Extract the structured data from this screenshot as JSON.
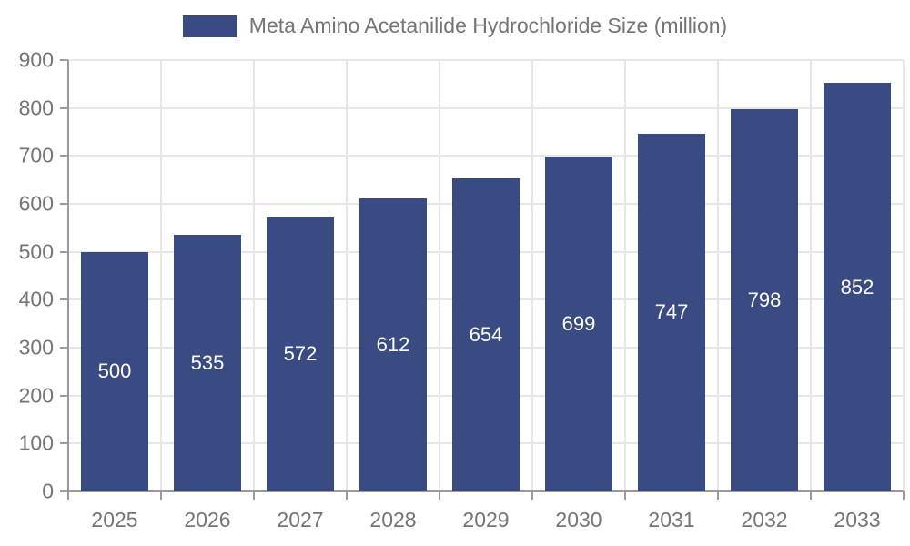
{
  "chart_data": {
    "type": "bar",
    "title": "Meta Amino Acetanilide Hydrochloride Size (million)",
    "categories": [
      "2025",
      "2026",
      "2027",
      "2028",
      "2029",
      "2030",
      "2031",
      "2032",
      "2033"
    ],
    "values": [
      500,
      535,
      572,
      612,
      654,
      699,
      747,
      798,
      852
    ],
    "xlabel": "",
    "ylabel": "",
    "ylim": [
      0,
      900
    ],
    "ytick_step": 100,
    "ytick_labels": [
      "0",
      "100",
      "200",
      "300",
      "400",
      "500",
      "600",
      "700",
      "800",
      "900"
    ],
    "grid": true,
    "legend_position": "top-center",
    "bar_color": "#3A4A83",
    "value_label_color": "#ffffff",
    "axis_color": "#9b9b9b",
    "grid_color": "#e7e7e7",
    "tick_text_color": "#757575"
  }
}
